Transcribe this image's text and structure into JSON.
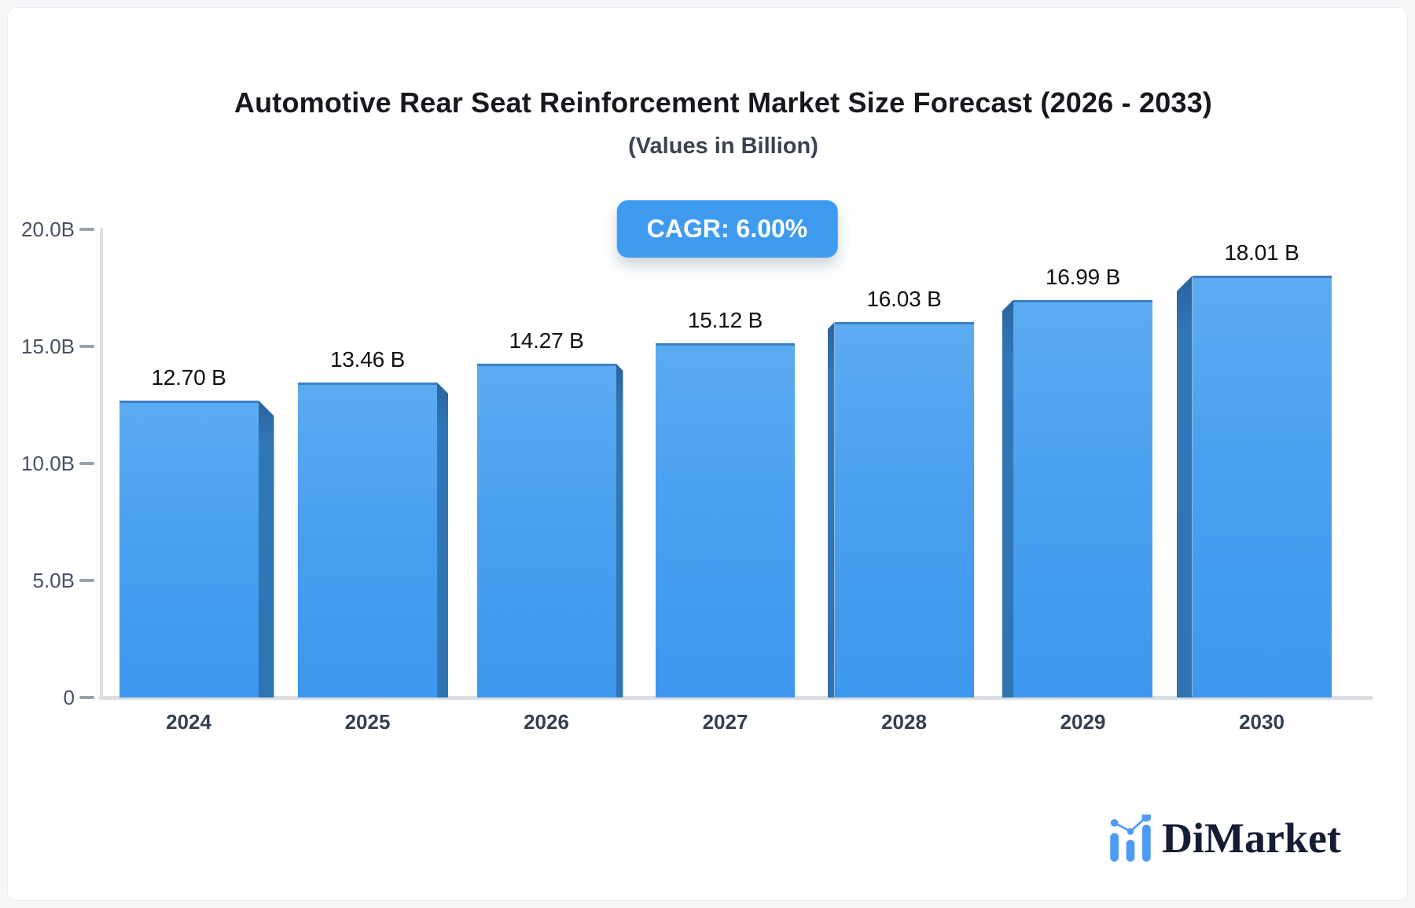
{
  "chart_data": {
    "type": "bar",
    "title": "Automotive Rear Seat Reinforcement Market Size Forecast (2026 - 2033)",
    "subtitle": "(Values in Billion)",
    "annotation": "CAGR: 6.00%",
    "categories": [
      "2024",
      "2025",
      "2026",
      "2027",
      "2028",
      "2029",
      "2030"
    ],
    "values": [
      12.7,
      13.46,
      14.27,
      15.12,
      16.03,
      16.99,
      18.01
    ],
    "bar_labels": [
      "12.70 B",
      "13.46 B",
      "14.27 B",
      "15.12 B",
      "16.03 B",
      "16.99 B",
      "18.01 B"
    ],
    "xlabel": "",
    "ylabel": "",
    "ylim": [
      0,
      20
    ],
    "y_ticks": [
      {
        "value": 20,
        "label": "20.0B"
      },
      {
        "value": 15,
        "label": "15.0B"
      },
      {
        "value": 10,
        "label": "10.0B"
      },
      {
        "value": 5,
        "label": "5.0B"
      },
      {
        "value": 0,
        "label": "0"
      }
    ],
    "grid": false,
    "legend": false,
    "colors": {
      "bar_face": "#4AA1EE",
      "bar_side": "#3074B3",
      "accent": "#3F9BF0",
      "axis_line": "#DADEE3",
      "tick_text": "#475064"
    }
  },
  "logo": {
    "brand": "DiMarket",
    "icon": "bar-chart-logo-icon",
    "icon_color": "#4D9BF4"
  }
}
